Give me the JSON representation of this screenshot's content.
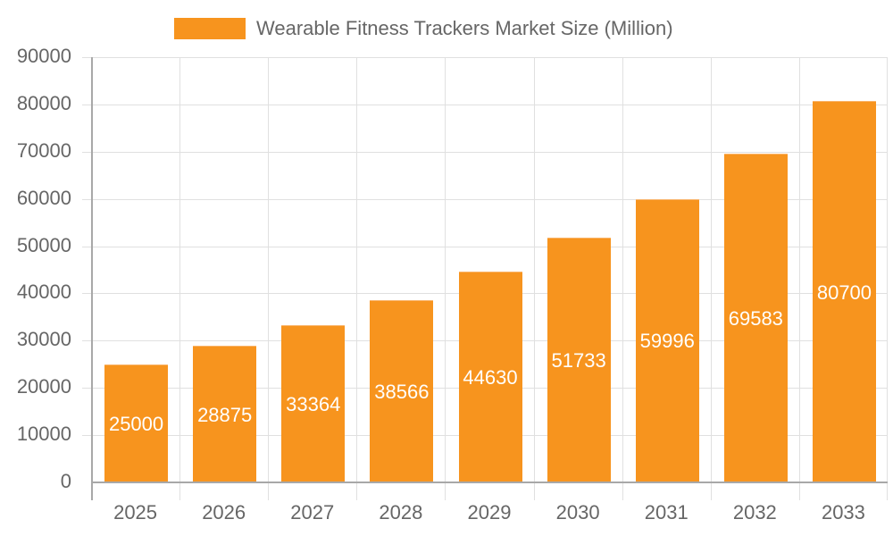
{
  "chart_data": {
    "type": "bar",
    "title": "",
    "legend": {
      "position": "top",
      "entries": [
        "Wearable Fitness Trackers Market Size (Million)"
      ]
    },
    "categories": [
      "2025",
      "2026",
      "2027",
      "2028",
      "2029",
      "2030",
      "2031",
      "2032",
      "2033"
    ],
    "series": [
      {
        "name": "Wearable Fitness Trackers Market Size (Million)",
        "color": "#f7941e",
        "values": [
          25000,
          28875,
          33364,
          38566,
          44630,
          51733,
          59996,
          69583,
          80700
        ]
      }
    ],
    "xlabel": "",
    "ylabel": "",
    "ylim": [
      0,
      90000
    ],
    "yticks": [
      "90000",
      "80000",
      "70000",
      "60000",
      "50000",
      "40000",
      "30000",
      "20000",
      "10000",
      "0"
    ],
    "grid": true,
    "data_labels": true
  },
  "legend": {
    "label": "Wearable Fitness Trackers Market Size (Million)",
    "color": "#f7941e"
  }
}
